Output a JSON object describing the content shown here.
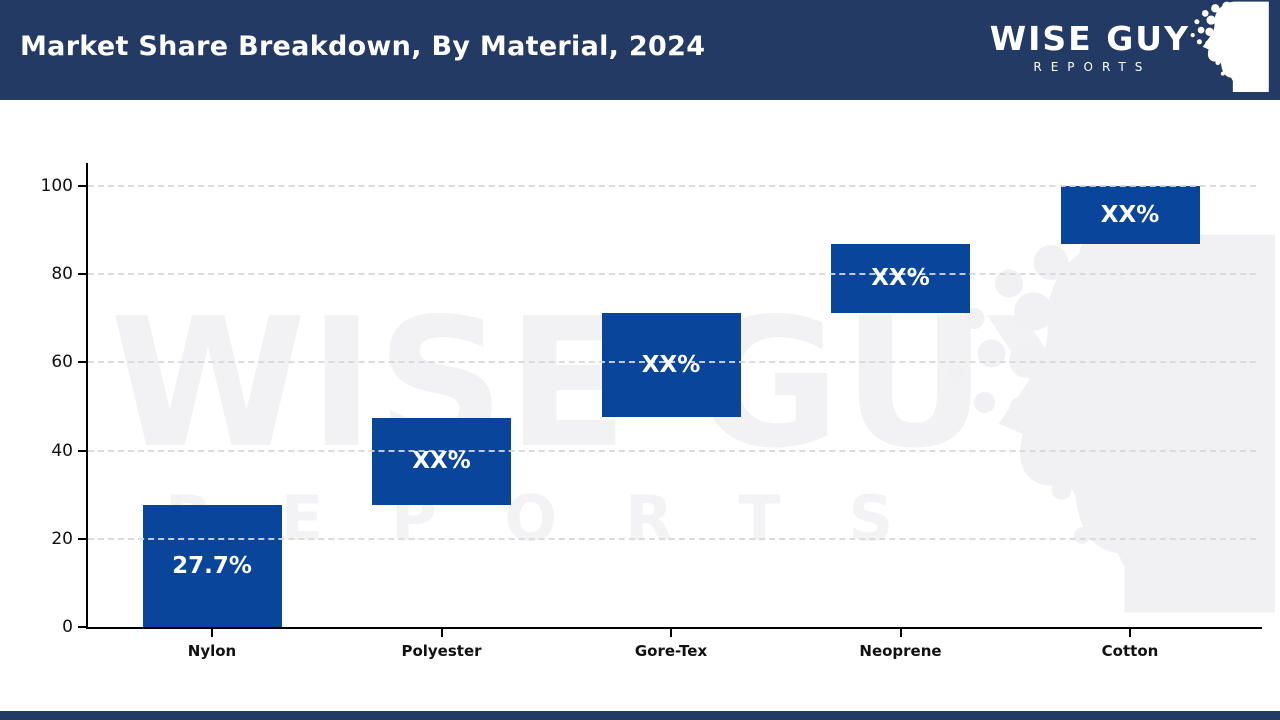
{
  "header": {
    "title": "Market Share Breakdown, By Material, 2024",
    "navy": "#233a64",
    "logo": {
      "line1": "WISE GUY",
      "line2": "REPORTS"
    }
  },
  "watermark": {
    "line1": "WISE GUY",
    "line2": "REPORTS"
  },
  "chart_data": {
    "type": "bar",
    "subtype": "floating-waterfall",
    "title": "Market Share Breakdown, By Material, 2024",
    "xlabel": "",
    "ylabel": "",
    "categories": [
      "Nylon",
      "Polyester",
      "Gore-Tex",
      "Neoprene",
      "Cotton"
    ],
    "segments": [
      {
        "category": "Nylon",
        "start": 0.0,
        "end": 27.7,
        "label": "27.7%"
      },
      {
        "category": "Polyester",
        "start": 27.7,
        "end": 47.5,
        "label": "XX%"
      },
      {
        "category": "Gore-Tex",
        "start": 47.7,
        "end": 71.3,
        "label": "XX%"
      },
      {
        "category": "Neoprene",
        "start": 71.3,
        "end": 86.9,
        "label": "XX%"
      },
      {
        "category": "Cotton",
        "start": 86.9,
        "end": 100.0,
        "label": "XX%"
      }
    ],
    "yticks": [
      0,
      20,
      40,
      60,
      80,
      100
    ],
    "ylim": [
      0,
      105
    ],
    "grid": "horizontal-dashed",
    "legend": "none",
    "bar_color": "#0a459c",
    "bar_label_color": "#ffffff",
    "axis_color": "#000000",
    "gridline_color": "#d8d8d8"
  }
}
